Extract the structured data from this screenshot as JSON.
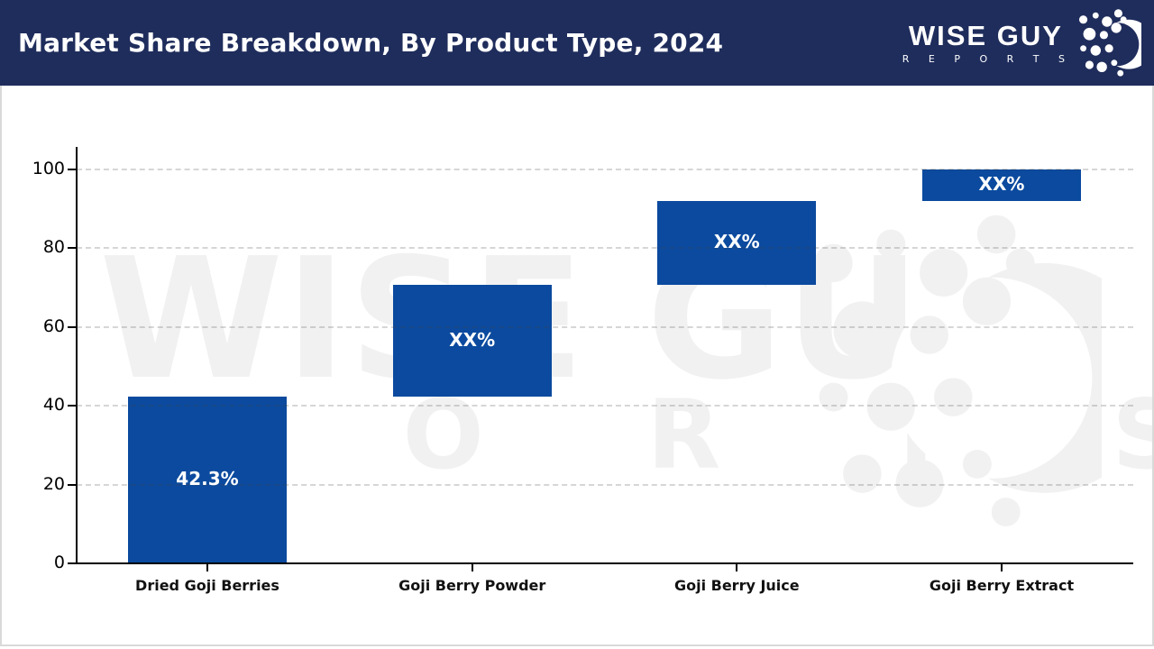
{
  "header": {
    "title": "Market Share Breakdown, By Product Type, 2024",
    "logo": {
      "line1": "WISE GUY",
      "line2": "R E P O R T S"
    }
  },
  "watermark": {
    "line1": "WISE GU",
    "line2": "P O R T S"
  },
  "colors": {
    "header_bg": "#1f2d5c",
    "bar": "#0b4a9e",
    "bar_label": "#ffffff",
    "axis": "#000000",
    "gridline_dashed": "#d6d6d6",
    "watermark": "#f1f1f1",
    "card_border": "#d9d9d9"
  },
  "chart_data": {
    "type": "bar",
    "subtype": "waterfall-stacked-segments",
    "title": "Market Share Breakdown, By Product Type, 2024",
    "categories": [
      "Dried Goji Berries",
      "Goji Berry Powder",
      "Goji Berry Juice",
      "Goji Berry Extract"
    ],
    "segments": [
      {
        "category": "Dried Goji Berries",
        "start": 0,
        "end": 42.3,
        "value": 42.3,
        "label": "42.3%"
      },
      {
        "category": "Goji Berry Powder",
        "start": 42.3,
        "end": 70.6,
        "value": 28.3,
        "label": "XX%"
      },
      {
        "category": "Goji Berry Juice",
        "start": 70.6,
        "end": 92.0,
        "value": 21.4,
        "label": "XX%"
      },
      {
        "category": "Goji Berry Extract",
        "start": 92.0,
        "end": 100.0,
        "value": 8.0,
        "label": "XX%"
      }
    ],
    "bar_color": "#0b4a9e",
    "label_color": "#ffffff",
    "xlabel": "",
    "ylabel": "",
    "ylim": [
      0,
      100
    ],
    "yticks": [
      0,
      20,
      40,
      60,
      80,
      100
    ],
    "grid": "horizontal dashed, drawn over bars",
    "legend": "none"
  }
}
